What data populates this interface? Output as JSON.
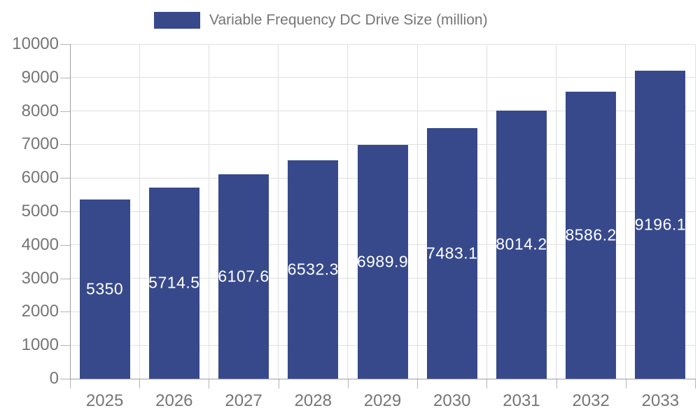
{
  "legend": {
    "label": "Variable Frequency DC Drive Size (million)"
  },
  "colors": {
    "bar": "#37498b",
    "grid": "#e0e0e0",
    "axis": "#9e9e9e",
    "tick": "#b5b5b5",
    "axis_text": "#757575",
    "value_label_text": "#ffffff",
    "legend_text": "#757575"
  },
  "chart_data": {
    "type": "bar",
    "title": "",
    "xlabel": "",
    "ylabel": "",
    "categories": [
      "2025",
      "2026",
      "2027",
      "2028",
      "2029",
      "2030",
      "2031",
      "2032",
      "2033"
    ],
    "series": [
      {
        "name": "Variable Frequency DC Drive Size (million)",
        "values": [
          5350,
          5714.5,
          6107.6,
          6532.3,
          6989.9,
          7483.1,
          8014.2,
          8586.2,
          9196.1
        ],
        "color": "#37498b"
      }
    ],
    "value_labels": [
      "5350",
      "5714.5",
      "6107.6",
      "6532.3",
      "6989.9",
      "7483.1",
      "8014.2",
      "8586.2",
      "9196.1"
    ],
    "value_label_position": "inside-center",
    "ylim": [
      0,
      10000
    ],
    "ytick_step": 1000,
    "ytick_labels": [
      "0",
      "1000",
      "2000",
      "3000",
      "4000",
      "5000",
      "6000",
      "7000",
      "8000",
      "9000",
      "10000"
    ],
    "grid": true,
    "legend_position": "top"
  }
}
